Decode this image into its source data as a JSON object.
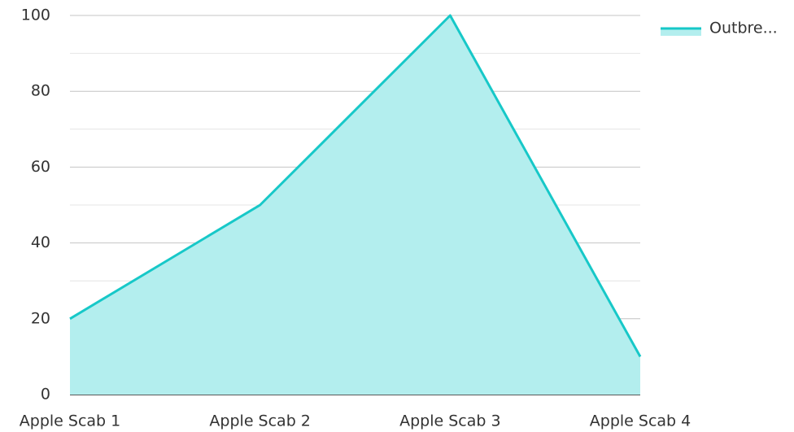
{
  "chart_data": {
    "type": "area",
    "categories": [
      "Apple Scab 1",
      "Apple Scab 2",
      "Apple Scab 3",
      "Apple Scab 4"
    ],
    "series": [
      {
        "name": "Outbre...",
        "color": "#17c8c8",
        "fill": "#b3eeee",
        "values": [
          20,
          50,
          100,
          10
        ]
      }
    ],
    "ylim": [
      0,
      100
    ],
    "yticks": [
      0,
      20,
      40,
      60,
      80,
      100
    ],
    "yminor": [
      10,
      30,
      50,
      70,
      90
    ],
    "grid": true,
    "legend": "top-right"
  }
}
